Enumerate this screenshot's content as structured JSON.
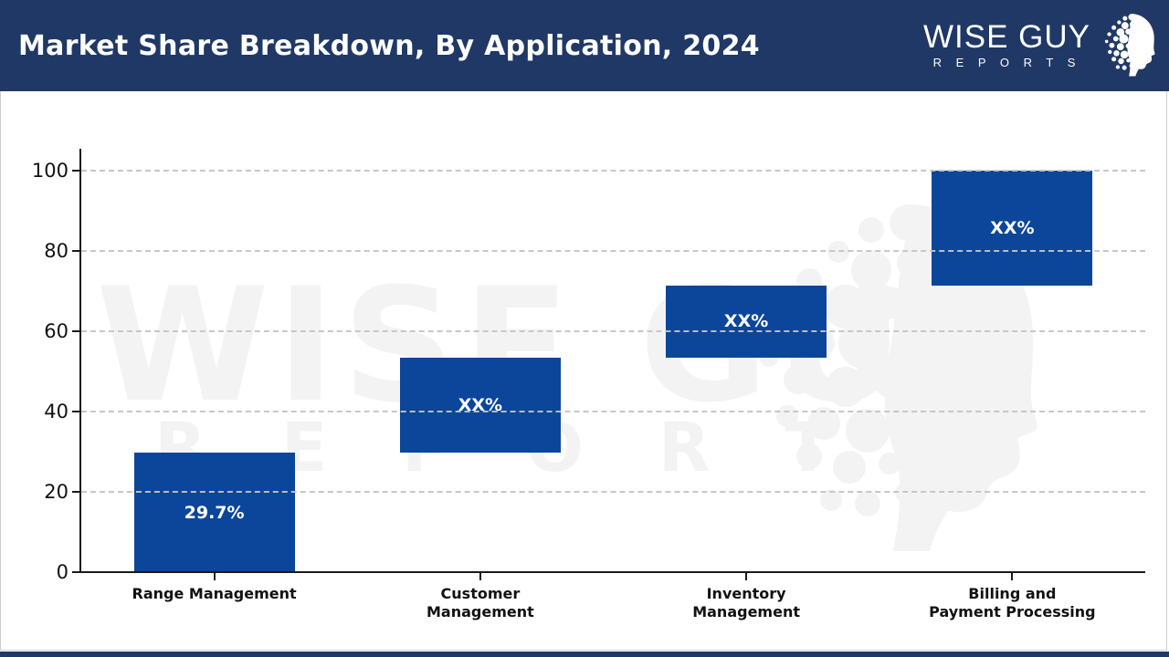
{
  "header": {
    "title": "Market Share Breakdown, By Application, 2024",
    "logo": {
      "name": "WISE GUY",
      "tagline": "R E P O R T S"
    }
  },
  "watermark": {
    "name": "WISE GUY",
    "tagline": "R E P O R T S"
  },
  "chart_data": {
    "type": "bar",
    "subtype": "waterfall-breakdown",
    "title": "Market Share Breakdown, By Application, 2024",
    "categories": [
      "Range Management",
      "Customer\nManagement",
      "Inventory\nManagement",
      "Billing and\nPayment Processing"
    ],
    "segments": [
      {
        "category": "Range Management",
        "start": 0,
        "end": 29.7,
        "label": "29.7%"
      },
      {
        "category": "Customer Management",
        "start": 29.7,
        "end": 53.4,
        "label": "XX%"
      },
      {
        "category": "Inventory Management",
        "start": 53.4,
        "end": 71.4,
        "label": "XX%"
      },
      {
        "category": "Billing and Payment Processing",
        "start": 71.4,
        "end": 100,
        "label": "XX%"
      }
    ],
    "ylim": [
      0,
      100
    ],
    "yticks": [
      0,
      20,
      40,
      60,
      80,
      100
    ],
    "grid": "dashed-horizontal",
    "legend": "none",
    "colors": {
      "bar": "#0b469b",
      "header": "#1f3866",
      "gridline": "#c9c9c9",
      "axis": "#1a1a1a",
      "label_on_bar": "#ffffff",
      "tick_text": "#111111",
      "watermark": "#f3f3f3"
    }
  }
}
